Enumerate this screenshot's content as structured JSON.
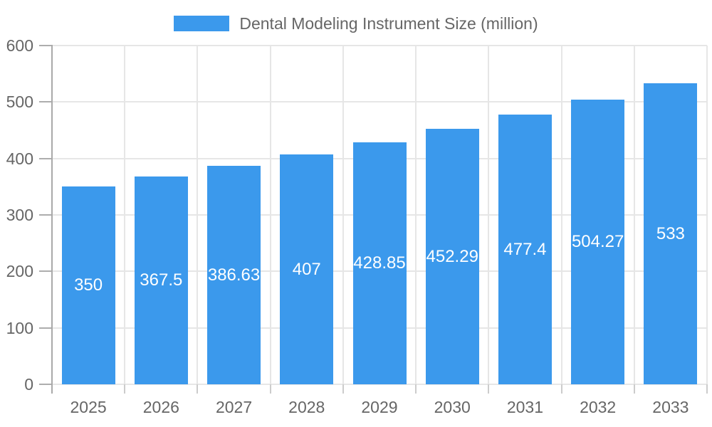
{
  "chart_data": {
    "type": "bar",
    "title": "Dental Modeling Instrument Size (million)",
    "legend": {
      "label": "Dental Modeling Instrument Size (million)",
      "position": "top"
    },
    "categories": [
      "2025",
      "2026",
      "2027",
      "2028",
      "2029",
      "2030",
      "2031",
      "2032",
      "2033"
    ],
    "values": [
      350,
      367.5,
      386.63,
      407,
      428.85,
      452.29,
      477.4,
      504.27,
      533
    ],
    "value_labels": [
      "350",
      "367.5",
      "386.63",
      "407",
      "428.85",
      "452.29",
      "477.4",
      "504.27",
      "533"
    ],
    "xlabel": "",
    "ylabel": "",
    "ylim": [
      0,
      600
    ],
    "yticks": [
      0,
      100,
      200,
      300,
      400,
      500,
      600
    ],
    "grid": true,
    "colors": {
      "bar": "#3b99ec",
      "value_label": "#ffffff",
      "axis_text": "#666666",
      "legend_text": "#666666",
      "gridline": "#e6e6e6",
      "axis_line": "#a9a9a9",
      "y_tick": "#adadad",
      "x_tick": "#cccccc"
    }
  }
}
